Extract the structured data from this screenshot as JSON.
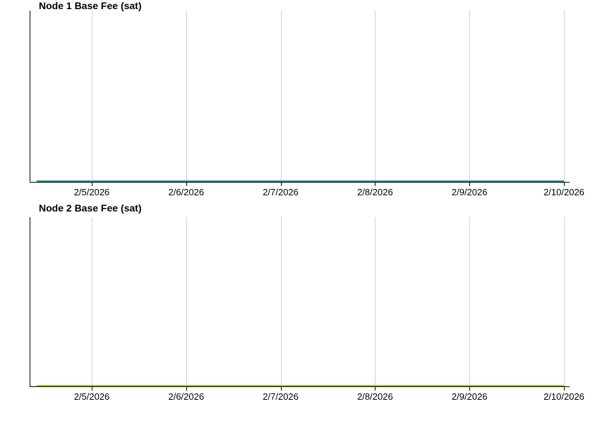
{
  "page": {
    "background_color": "#ffffff"
  },
  "chart_data": [
    {
      "type": "line",
      "title": "Node 1 Base Fee (sat)",
      "xlabel": "",
      "ylabel": "",
      "x_tick_labels": [
        "2/5/2026",
        "2/6/2026",
        "2/7/2026",
        "2/8/2026",
        "2/9/2026",
        "2/10/2026"
      ],
      "y_tick_labels": [],
      "grid": "vertical gridlines only",
      "legend_position": "none",
      "series": [
        {
          "name": "Node 1 Base Fee (sat)",
          "color": "#1E8A99",
          "x": [
            "2/5/2026",
            "2/6/2026",
            "2/7/2026",
            "2/8/2026",
            "2/9/2026",
            "2/10/2026"
          ],
          "values": [
            0,
            0,
            0,
            0,
            0,
            0
          ],
          "description": "flat line at constant near-zero value running along the x-axis across the full plot width"
        }
      ]
    },
    {
      "type": "line",
      "title": "Node 2 Base Fee (sat)",
      "xlabel": "",
      "ylabel": "",
      "x_tick_labels": [
        "2/5/2026",
        "2/6/2026",
        "2/7/2026",
        "2/8/2026",
        "2/9/2026",
        "2/10/2026"
      ],
      "y_tick_labels": [],
      "grid": "vertical gridlines only",
      "legend_position": "none",
      "series": [
        {
          "name": "Node 2 Base Fee (sat)",
          "color": "#9DC43C",
          "x": [
            "2/5/2026",
            "2/6/2026",
            "2/7/2026",
            "2/8/2026",
            "2/9/2026",
            "2/10/2026"
          ],
          "values": [
            0,
            0,
            0,
            0,
            0,
            0
          ],
          "description": "flat line at constant near-zero value running along the x-axis across the full plot width"
        }
      ]
    }
  ],
  "colors": {
    "background": "#ffffff",
    "axis": "#000000",
    "gridline": "#d0d0d0",
    "title_text": "#000000",
    "tick_label_text": "#000000",
    "node1_series": "#1E8A99",
    "node2_series": "#9DC43C"
  }
}
